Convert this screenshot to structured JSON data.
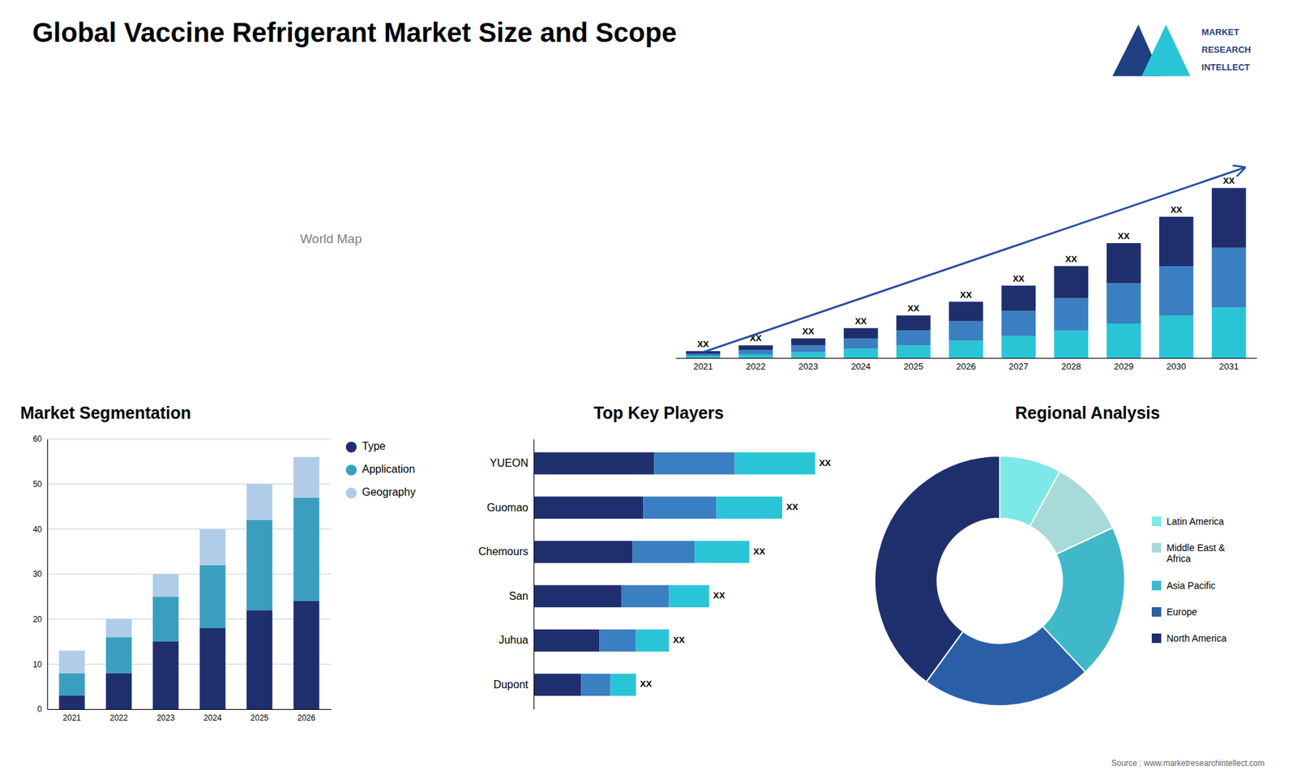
{
  "title": "Global Vaccine Refrigerant Market Size and Scope",
  "annotations": [
    "World Map",
    "Source : www.marketresearchintellect.com"
  ],
  "logo": {
    "annotations": [
      "MARKET",
      "RESEARCH",
      "INTELLECT"
    ],
    "colors": [
      "#1f4080",
      "#29c5d6"
    ]
  },
  "chart_data": [
    {
      "type": "bar",
      "stacked": true,
      "categories": [
        "2021",
        "2022",
        "2023",
        "2024",
        "2025",
        "2026",
        "2027",
        "2028",
        "2029",
        "2030",
        "2031"
      ],
      "series": [
        {
          "color": "#29c5d6",
          "values": [
            0.8,
            1.5,
            2.5,
            4.0,
            5.5,
            7.5,
            9.5,
            12.0,
            15.0,
            18.5,
            22.0
          ]
        },
        {
          "color": "#3a7fc1",
          "values": [
            1.0,
            2.0,
            3.0,
            4.5,
            6.5,
            8.5,
            11.0,
            14.0,
            17.5,
            21.5,
            26.0
          ]
        },
        {
          "color": "#1f2f6e",
          "values": [
            1.2,
            2.0,
            3.0,
            4.5,
            6.5,
            8.5,
            11.0,
            14.0,
            17.5,
            21.5,
            26.0
          ]
        }
      ],
      "ylim": [
        0,
        114.7
      ],
      "tick_labels": "x",
      "annotations": [
        "XX",
        "XX",
        "XX",
        "XX",
        "XX",
        "XX",
        "XX",
        "XX",
        "XX",
        "XX",
        "XX"
      ]
    },
    {
      "type": "bar",
      "title": "Market Segmentation",
      "stacked": true,
      "categories": [
        "2021",
        "2022",
        "2023",
        "2024",
        "2025",
        "2026"
      ],
      "series": [
        {
          "name": "Type",
          "color": "#1f2f6e",
          "values": [
            3,
            8,
            15,
            18,
            22,
            24
          ]
        },
        {
          "name": "Application",
          "color": "#3a9fbf",
          "values": [
            5,
            8,
            10,
            14,
            20,
            23
          ]
        },
        {
          "name": "Geography",
          "color": "#b0cce8",
          "values": [
            5,
            4,
            5,
            8,
            8,
            9
          ]
        }
      ],
      "ylim": [
        0,
        60
      ],
      "yticks": [
        0,
        10,
        20,
        30,
        40,
        50,
        60
      ],
      "grid": true,
      "legend": "right"
    },
    {
      "type": "bar",
      "title": "Top Key Players",
      "orientation": "horizontal",
      "stacked": true,
      "categories": [
        "YUEON",
        "Guomao",
        "Chemours",
        "San",
        "Juhua",
        "Dupont"
      ],
      "series": [
        {
          "color": "#1f2f6e",
          "values": [
            0.33,
            0.3,
            0.27,
            0.24,
            0.18,
            0.13
          ]
        },
        {
          "color": "#3a7fc1",
          "values": [
            0.22,
            0.2,
            0.17,
            0.13,
            0.1,
            0.08
          ]
        },
        {
          "color": "#29c5d6",
          "values": [
            0.22,
            0.18,
            0.15,
            0.11,
            0.09,
            0.07
          ]
        }
      ],
      "xlim": [
        0,
        0.85
      ],
      "tick_labels": "y",
      "annotations": [
        "XX",
        "XX",
        "XX",
        "XX",
        "XX",
        "XX"
      ]
    },
    {
      "type": "donut",
      "title": "Regional Analysis",
      "categories": [
        "Latin America",
        "Middle East &\nAfrica",
        "Asia Pacific",
        "Europe",
        "North America"
      ],
      "values": [
        8,
        10,
        20,
        22,
        40
      ],
      "colors": [
        "#7de8e8",
        "#a8dada",
        "#3fb8ca",
        "#2a5fa8",
        "#1f2f6e"
      ],
      "legend": "right"
    }
  ]
}
